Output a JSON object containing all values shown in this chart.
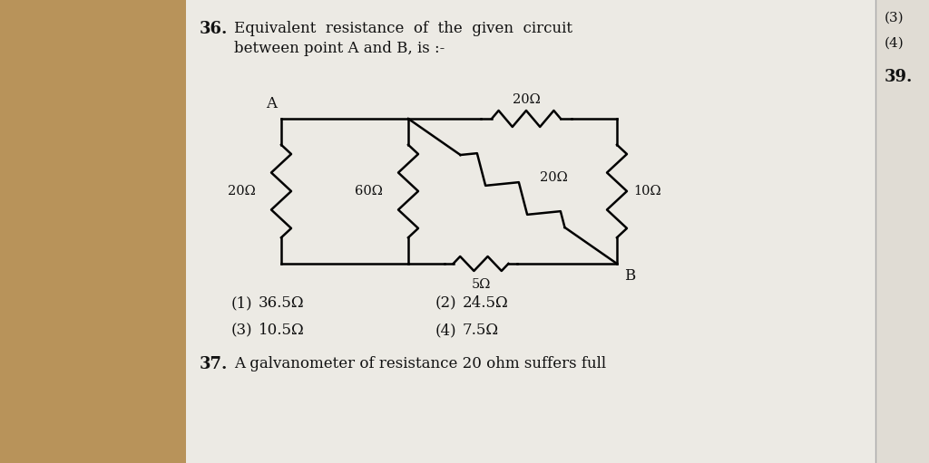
{
  "bg_left_color": "#b8935a",
  "bg_main_color": "#e8e4de",
  "bg_right_color": "#d8d0c0",
  "text_color": "#111111",
  "question_number": "36.",
  "question_line1": "Equivalent  resistance  of  the  given  circuit",
  "question_line2": "between point A and B, is :-",
  "answer_options": [
    {
      "num": "(1)",
      "val": "36.5Ω"
    },
    {
      "num": "(2)",
      "val": "24.5Ω"
    },
    {
      "num": "(3)",
      "val": "10.5Ω"
    },
    {
      "num": "(4)",
      "val": "7.5Ω"
    }
  ],
  "next_question": "37.",
  "next_text": "A galvanometer of resistance 20 ohm suffers full",
  "right_labels": [
    "(3)",
    "(4)"
  ],
  "right_number": "39.",
  "circuit": {
    "xL": 310,
    "xM": 450,
    "xR": 680,
    "yT": 380,
    "yB": 220,
    "res_20_left_label": "20Ω",
    "res_60_label": "60Ω",
    "res_20_top_label": "20Ω",
    "res_20_diag_label": "20Ω",
    "res_5_label": "5Ω",
    "res_10_label": "10Ω",
    "label_A": "A",
    "label_B": "B"
  }
}
